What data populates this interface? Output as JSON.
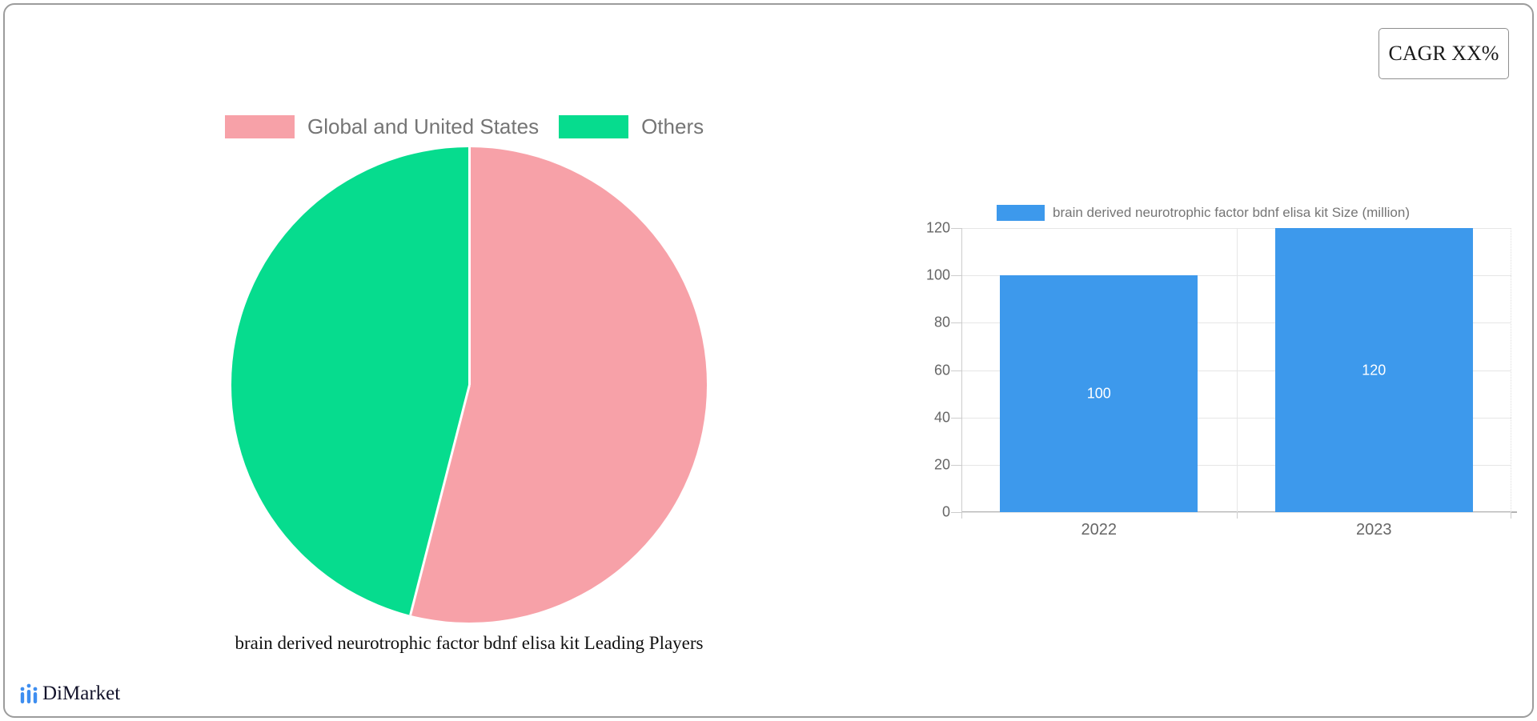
{
  "cagr_box": {
    "label": "CAGR XX%"
  },
  "pie": {
    "caption": "brain derived neurotrophic factor bdnf elisa kit Leading Players",
    "legend": [
      {
        "label": "Global and United States",
        "color": "#F7A1A8"
      },
      {
        "label": "Others",
        "color": "#06DC8E"
      }
    ]
  },
  "bar": {
    "legend_label": "brain derived neurotrophic factor bdnf elisa kit Size (million)",
    "color": "#3D99EC"
  },
  "footer": {
    "brand": "DiMarket",
    "icon_color": "#3E8EF0"
  },
  "chart_data": [
    {
      "type": "pie",
      "title": "brain derived neurotrophic factor bdnf elisa kit Leading Players",
      "labels": [
        "Global and United States",
        "Others"
      ],
      "values": [
        54,
        46
      ],
      "colors": [
        "#F7A1A8",
        "#06DC8E"
      ],
      "slice_border_color": "#ffffff",
      "start_angle_deg": 0,
      "direction": "clockwise",
      "legend_position": "top"
    },
    {
      "type": "bar",
      "categories": [
        "2022",
        "2023"
      ],
      "series": [
        {
          "name": "brain derived neurotrophic factor bdnf elisa kit Size (million)",
          "values": [
            100,
            120
          ]
        }
      ],
      "value_labels": [
        "100",
        "120"
      ],
      "bar_color": "#3D99EC",
      "ylim": [
        0,
        120
      ],
      "yticks": [
        0,
        20,
        40,
        60,
        80,
        100,
        120
      ],
      "grid": true,
      "legend_position": "top"
    }
  ]
}
